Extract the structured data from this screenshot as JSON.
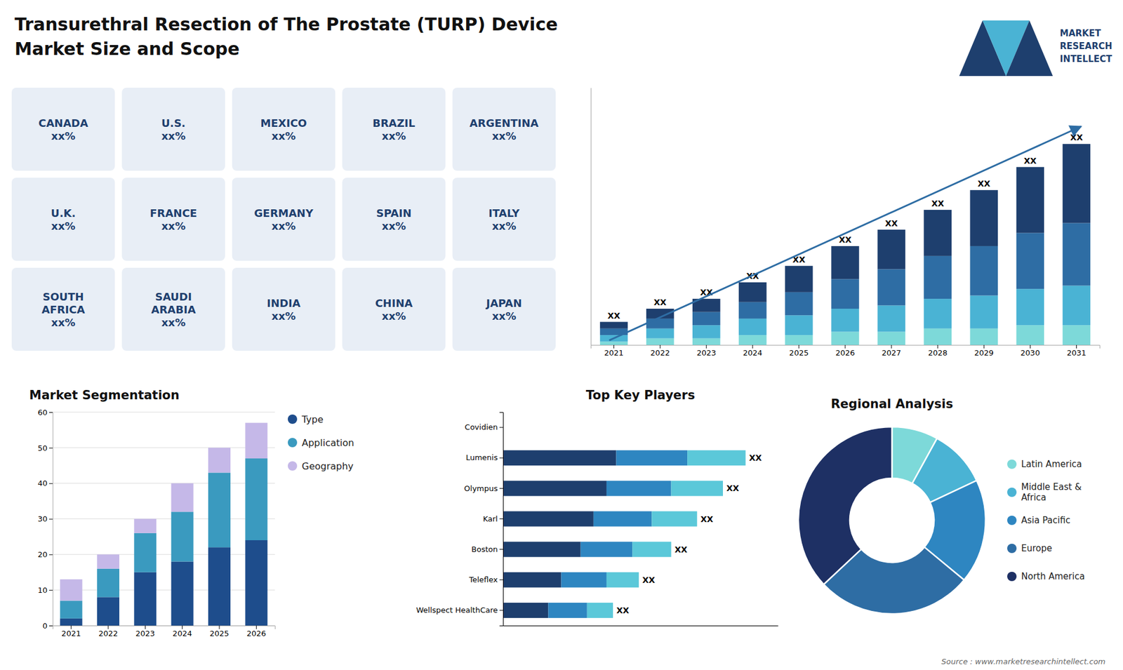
{
  "title": "Transurethral Resection of The Prostate (TURP) Device",
  "subtitle": "Market Size and Scope",
  "annotations": [
    "MARKET",
    "RESEARCH",
    "INTELLECT",
    "Source : www.marketresearchintellect.com"
  ],
  "chart_data": [
    {
      "type": "map",
      "annotations": [
        "CANADA\nxx%",
        "U.S.\nxx%",
        "MEXICO\nxx%",
        "BRAZIL\nxx%",
        "ARGENTINA\nxx%",
        "U.K.\nxx%",
        "FRANCE\nxx%",
        "GERMANY\nxx%",
        "SPAIN\nxx%",
        "ITALY\nxx%",
        "SOUTH\nAFRICA\nxx%",
        "SAUDI\nARABIA\nxx%",
        "INDIA\nxx%",
        "CHINA\nxx%",
        "JAPAN\nxx%"
      ]
    },
    {
      "type": "bar",
      "stacked": true,
      "categories": [
        "2021",
        "2022",
        "2023",
        "2024",
        "2025",
        "2026",
        "2027",
        "2028",
        "2029",
        "2030",
        "2031"
      ],
      "series": [
        {
          "color": "#7dd9d9",
          "values": [
            1,
            2,
            2,
            3,
            3,
            4,
            4,
            5,
            5,
            6,
            6
          ]
        },
        {
          "color": "#4ab3d4",
          "values": [
            2,
            3,
            4,
            5,
            6,
            7,
            8,
            9,
            10,
            11,
            12
          ]
        },
        {
          "color": "#2e6da4",
          "values": [
            2,
            3,
            4,
            5,
            7,
            9,
            11,
            13,
            15,
            17,
            19
          ]
        },
        {
          "color": "#1e3f6e",
          "values": [
            2,
            3,
            4,
            6,
            8,
            10,
            12,
            14,
            17,
            20,
            24
          ]
        }
      ],
      "ylim": [
        0,
        78.08
      ],
      "tick_labels": "x",
      "annotations": [
        "XX",
        "XX",
        "XX",
        "XX",
        "XX",
        "XX",
        "XX",
        "XX",
        "XX",
        "XX",
        "XX"
      ]
    },
    {
      "type": "bar",
      "stacked": true,
      "title": "Market Segmentation",
      "categories": [
        "2021",
        "2022",
        "2023",
        "2024",
        "2025",
        "2026"
      ],
      "series": [
        {
          "name": "Type",
          "color": "#1e4d8c",
          "values": [
            2,
            8,
            15,
            18,
            22,
            24
          ]
        },
        {
          "name": "Application",
          "color": "#3a9abf",
          "values": [
            5,
            8,
            11,
            14,
            21,
            23
          ]
        },
        {
          "name": "Geography",
          "color": "#c5b8e8",
          "values": [
            6,
            4,
            4,
            8,
            7,
            10
          ]
        }
      ],
      "ylim": [
        0,
        60
      ],
      "yticks": [
        0,
        10,
        20,
        30,
        40,
        50,
        60
      ],
      "grid": true,
      "legend": "right"
    },
    {
      "type": "bar",
      "stacked": true,
      "orientation": "horizontal",
      "title": "Top Key Players",
      "categories": [
        "Covidien",
        "Lumenis",
        "Olympus",
        "Karl",
        "Boston",
        "Teleflex",
        "Wellspect HealthCare"
      ],
      "series": [
        {
          "color": "#1e3f6e",
          "values": [
            0,
            35,
            32,
            28,
            24,
            18,
            14
          ]
        },
        {
          "color": "#2e86c1",
          "values": [
            0,
            22,
            20,
            18,
            16,
            14,
            12
          ]
        },
        {
          "color": "#5bc8d9",
          "values": [
            0,
            18,
            16,
            14,
            12,
            10,
            8
          ]
        }
      ],
      "xlim": [
        0,
        85
      ],
      "tick_labels": "y",
      "annotations": [
        null,
        "XX",
        "XX",
        "XX",
        "XX",
        "XX",
        "XX"
      ]
    },
    {
      "type": "pie",
      "title": "Regional Analysis",
      "categories": [
        "Latin America",
        "Middle East &\nAfrica",
        "Asia Pacific",
        "Europe",
        "North America"
      ],
      "values": [
        8,
        10,
        18,
        27,
        37
      ],
      "colors": [
        "#7dd9d9",
        "#4ab3d4",
        "#2e86c1",
        "#2e6da4",
        "#1e3064"
      ],
      "legend": "right"
    }
  ]
}
